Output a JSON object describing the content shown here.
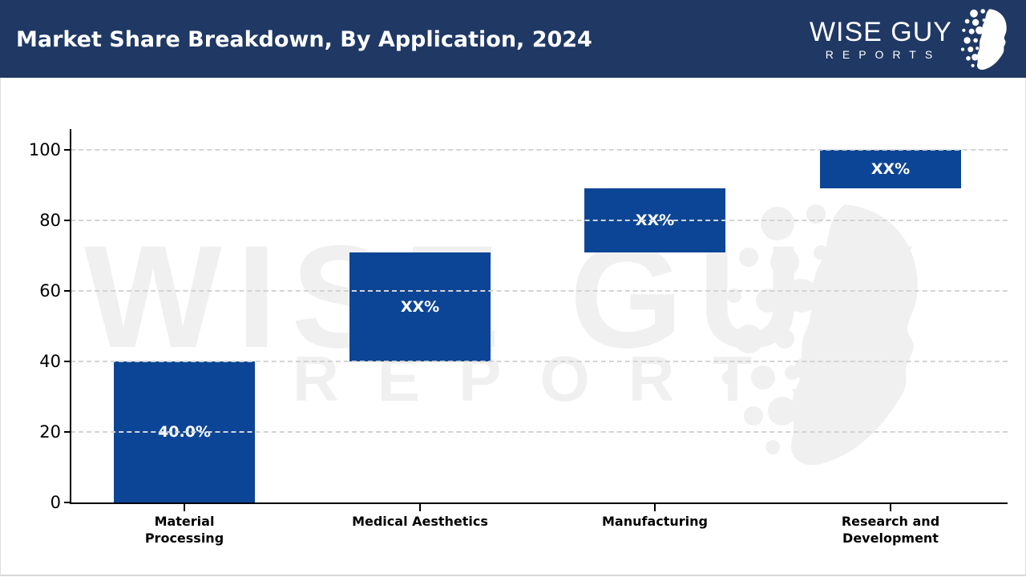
{
  "header": {
    "title": "Market Share Breakdown, By Application, 2024",
    "bg_color": "#1f3864",
    "logo": {
      "line1": "WISE GUY",
      "line2": "REPORTS"
    }
  },
  "watermark": {
    "line1": "WISE GUY",
    "line2": "REPORTS"
  },
  "chart_data": {
    "type": "bar",
    "subtype": "waterfall",
    "title": "Market Share Breakdown, By Application, 2024",
    "categories": [
      "Material\nProcessing",
      "Medical Aesthetics",
      "Manufacturing",
      "Research and\nDevelopment"
    ],
    "series": [
      {
        "name": "Market share (%)",
        "values": [
          40,
          31,
          18,
          11
        ]
      }
    ],
    "cumulative_ranges": [
      [
        0,
        40
      ],
      [
        40,
        71
      ],
      [
        71,
        89
      ],
      [
        89,
        100
      ]
    ],
    "bar_labels": [
      "40.0%",
      "XX%",
      "XX%",
      "XX%"
    ],
    "xlabel": "",
    "ylabel": "",
    "ylim": [
      0,
      105
    ],
    "yticks": [
      0,
      20,
      40,
      60,
      80,
      100
    ],
    "grid": "horizontal dashed",
    "legend": "none",
    "bar_color": "#0d4596",
    "bar_label_color": "#ffffff",
    "grid_color": "#d4d4d4",
    "watermark_color": "#f0f0f0"
  }
}
